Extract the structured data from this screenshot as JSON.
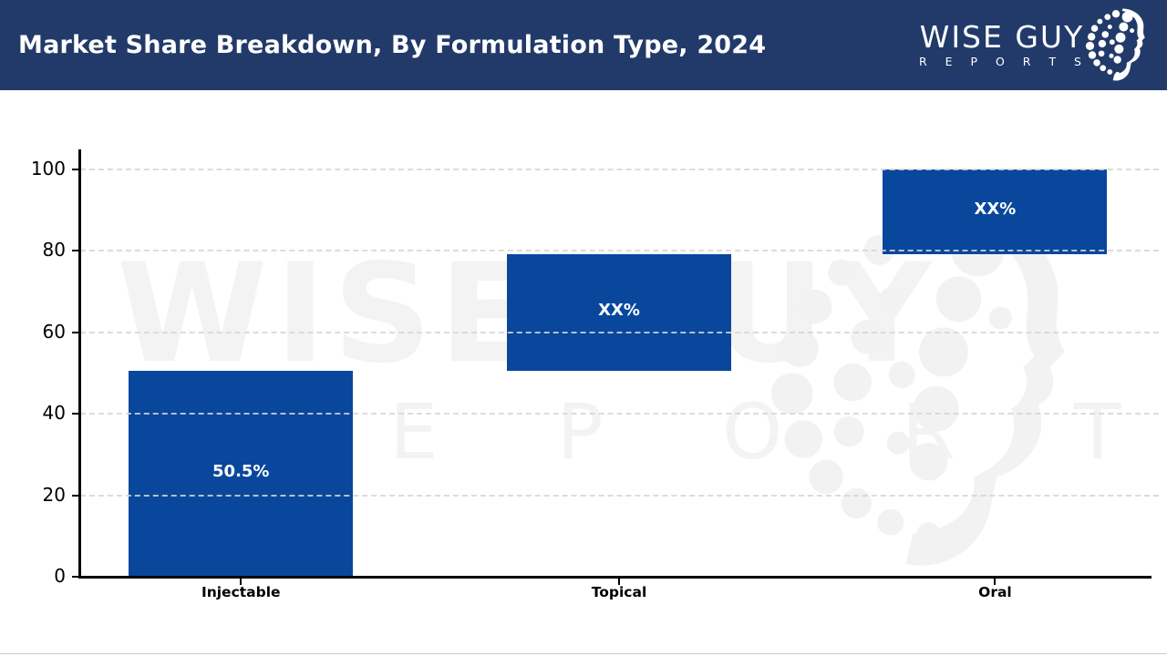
{
  "header": {
    "title": "Market Share Breakdown, By Formulation Type, 2024",
    "bg_color": "#213a69",
    "logo": {
      "line1": "WISE GUY",
      "line2": "R E P O R T S"
    }
  },
  "watermark": {
    "line1": "WISE GUY",
    "line2": "R E P O R T S"
  },
  "chart_data": {
    "type": "bar",
    "subtype": "waterfall-style floating segments (stacked market-share breakdown)",
    "title": "Market Share Breakdown, By Formulation Type, 2024",
    "categories": [
      "Injectable",
      "Topical",
      "Oral"
    ],
    "segments": [
      {
        "category": "Injectable",
        "start": 0,
        "end": 50.5,
        "label": "50.5%"
      },
      {
        "category": "Topical",
        "start": 50.5,
        "end": 79.2,
        "label": "XX%"
      },
      {
        "category": "Oral",
        "start": 79.3,
        "end": 100,
        "label": "XX%"
      }
    ],
    "xlabel": "",
    "ylabel": "",
    "ylim": [
      0,
      100
    ],
    "yticks": [
      0,
      20,
      40,
      60,
      80,
      100
    ],
    "grid": "horizontal dashed, drawn above bars",
    "legend": "none",
    "bar_color": "#08479c",
    "bar_label_color": "#ffffff",
    "axis_color": "#000000",
    "gridline_color": "#d6d6d6"
  }
}
